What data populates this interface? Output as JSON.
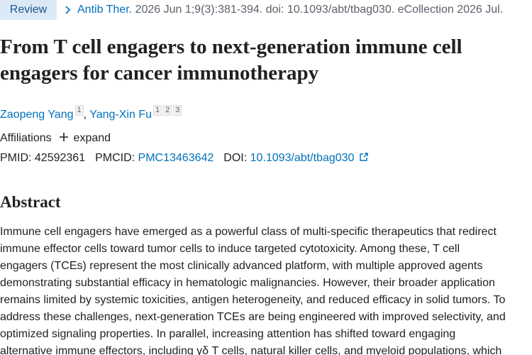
{
  "header": {
    "badge": "Review",
    "journal": "Antib Ther.",
    "citation": "2026 Jun 1;9(3):381-394. doi: 10.1093/abt/tbag030. eCollection 2026 Jul."
  },
  "article": {
    "title_lines": [
      "From T cell engagers to next-generation immune cell",
      "engagers for cancer immunotherapy"
    ],
    "authors": [
      {
        "name": "Zaopeng Yang",
        "affiliations": [
          "1"
        ]
      },
      {
        "name": "Yang-Xin Fu",
        "affiliations": [
          "1",
          "2",
          "3"
        ]
      }
    ],
    "affiliations_label": "Affiliations",
    "expand": "expand",
    "ids": {
      "pmid_label": "PMID:",
      "pmid": "42592361",
      "pmcid_label": "PMCID:",
      "pmcid": "PMC13463642",
      "doi_label": "DOI:",
      "doi": "10.1093/abt/tbag030"
    }
  },
  "abstract": {
    "heading": "Abstract",
    "lines": [
      "Immune cell engagers have emerged as a powerful class of multi-specific therapeutics that redirect",
      "immune effector cells toward tumor cells to induce targeted cytotoxicity. Among these, T cell",
      "engagers (TCEs) represent the most clinically advanced platform, with multiple approved agents",
      "demonstrating substantial efficacy in hematologic malignancies. However, their broader application",
      "remains limited by systemic toxicities, antigen heterogeneity, and reduced efficacy in solid tumors. To",
      "address these challenges, next-generation TCEs are being engineered with improved selectivity, and",
      "optimized signaling properties. In parallel, increasing attention has shifted toward engaging",
      "alternative immune effectors, including γδ T cells, natural killer cells, and myeloid populations, which"
    ]
  }
}
